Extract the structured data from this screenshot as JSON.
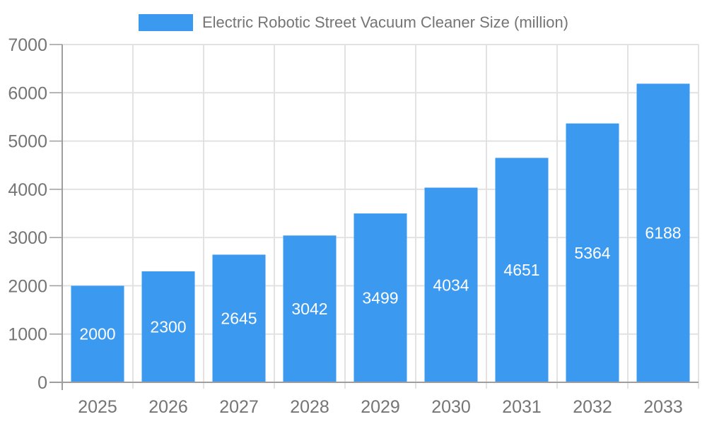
{
  "chart_data": {
    "type": "bar",
    "title": "Electric Robotic Street Vacuum Cleaner Size (million)",
    "legend_position": "top",
    "categories": [
      "2025",
      "2026",
      "2027",
      "2028",
      "2029",
      "2030",
      "2031",
      "2032",
      "2033"
    ],
    "series": [
      {
        "name": "Electric Robotic Street Vacuum Cleaner Size (million)",
        "values": [
          2000,
          2300,
          2645,
          3042,
          3499,
          4034,
          4651,
          5364,
          6188
        ]
      }
    ],
    "value_labels": [
      "2000",
      "2300",
      "2645",
      "3042",
      "3499",
      "4034",
      "4651",
      "5364",
      "6188"
    ],
    "xlabel": "",
    "ylabel": "",
    "ylim": [
      0,
      7000
    ],
    "yticks": [
      0,
      1000,
      2000,
      3000,
      4000,
      5000,
      6000,
      7000
    ],
    "ytick_labels": [
      "0",
      "1000",
      "2000",
      "3000",
      "4000",
      "5000",
      "6000",
      "7000"
    ],
    "grid": true
  },
  "colors": {
    "bar": "#3b99f0",
    "grid": "#e2e2e2",
    "axis": "#9e9e9e",
    "axis_text": "#757575",
    "value_label": "#ffffff",
    "background": "#ffffff"
  }
}
